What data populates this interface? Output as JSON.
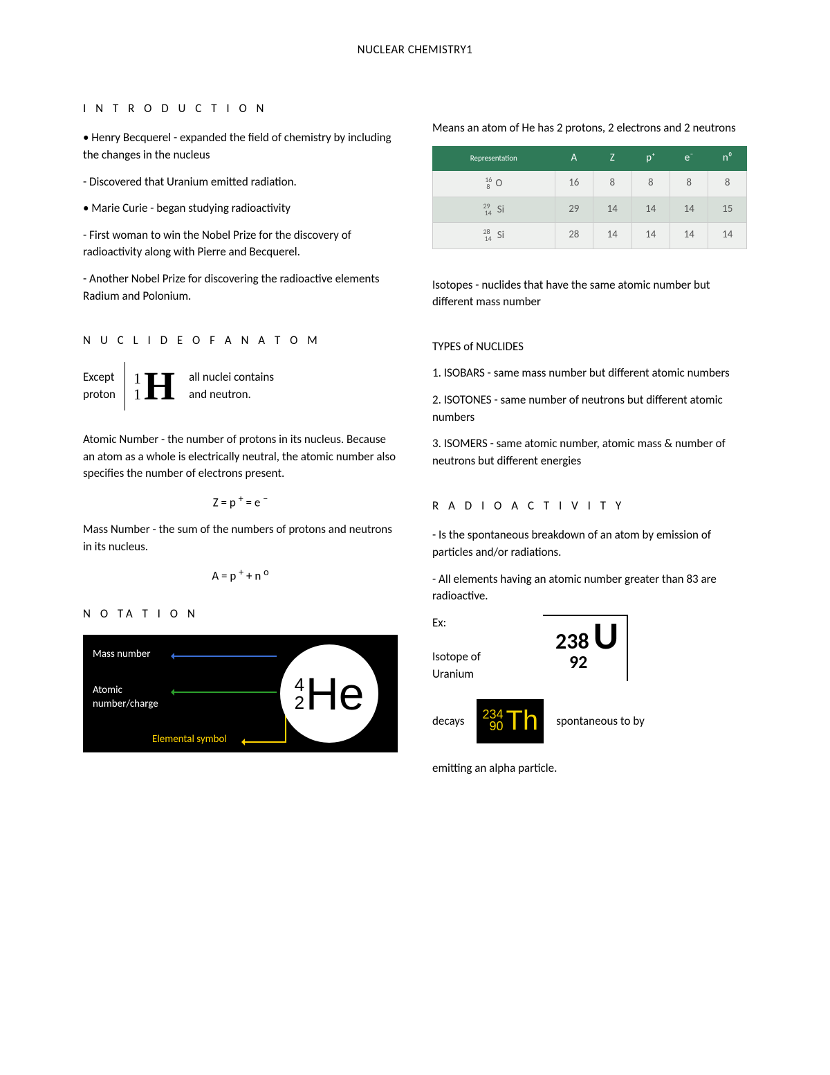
{
  "title": "NUCLEAR CHEMISTRY1",
  "sections": {
    "intro_heading": "I N T R O D U C T I O N",
    "nuclide_heading": "N U C L I D E O F A N A T O M",
    "notation_heading": "N O TA T I O N",
    "types_heading": "TYPES of NUCLIDES",
    "radio_heading": "R A D I O A C T I V I T Y"
  },
  "intro": {
    "p1": "• Henry Becquerel - expanded the field of chemistry by including the changes in the nucleus",
    "p2": "- Discovered that Uranium emitted radiation.",
    "p3": "• Marie Curie - began studying radioactivity",
    "p4": "- First woman to win the Nobel Prize for the discovery of radioactivity along with Pierre and Becquerel.",
    "p5": "- Another Nobel Prize for discovering the radioactive elements Radium and Polonium."
  },
  "nuclide": {
    "lbl_left_1": "Except",
    "lbl_left_2": "proton",
    "mass": "1",
    "z": "1",
    "symbol": "H",
    "lbl_right_1": "all nuclei contains",
    "lbl_right_2": "and neutron.",
    "atomic_def": "Atomic Number - the number of protons in its nucleus. Because an atom as a whole is electrically neutral, the atomic number also specifies the number of electrons present.",
    "formula1_pre": "Z = p ",
    "formula1_sup1": "+",
    "formula1_mid": " = e ",
    "formula1_sup2": "−",
    "mass_def": "Mass Number - the sum of the numbers of protons and neutrons in its nucleus.",
    "formula2_pre": "A = p ",
    "formula2_sup1": "+",
    "formula2_mid": " + n ",
    "formula2_sup2": "o"
  },
  "notation": {
    "label_mass": "Mass number",
    "label_atomic1": "Atomic",
    "label_atomic2": "number/charge",
    "label_elem": "Elemental symbol",
    "he_mass": "4",
    "he_z": "2",
    "he_sym": "He",
    "arrow_colors": {
      "mass": "#3b6fd6",
      "atomic": "#2ca02c",
      "elem": "#ffd400"
    }
  },
  "rightcol": {
    "means": "Means an atom of He has 2 protons, 2 electrons and 2 neutrons",
    "isotopes": "Isotopes - nuclides that have the same atomic number but different mass number",
    "type1": "1. ISOBARS - same mass number but different atomic numbers",
    "type2": "2. ISOTONES - same number of neutrons but different atomic numbers",
    "type3": "3. ISOMERS - same atomic number, atomic mass & number of neutrons but different energies",
    "radio1": "- Is the spontaneous breakdown of an atom by emission of particles and/or radiations.",
    "radio2": "- All elements having an atomic number greater than 83 are radioactive.",
    "ex": "Ex:",
    "isotope_label1": "Isotope of",
    "isotope_label2": "Uranium",
    "u_mass": "238",
    "u_z": "92",
    "u_sym": "U",
    "decays": "decays",
    "th_mass": "234",
    "th_z": "90",
    "th_sym": "Th",
    "spont": "spontaneous to by",
    "emit": "emitting an alpha particle."
  },
  "table": {
    "headers": [
      "Representation",
      "A",
      "Z",
      "p⁺",
      "e⁻",
      "n⁰"
    ],
    "header_bg": "#2f7a58",
    "rows": [
      {
        "sym": "O",
        "mass": "16",
        "z": "8",
        "A": "16",
        "Z": "8",
        "p": "8",
        "e": "8",
        "n": "8"
      },
      {
        "sym": "Si",
        "mass": "29",
        "z": "14",
        "A": "29",
        "Z": "14",
        "p": "14",
        "e": "14",
        "n": "15"
      },
      {
        "sym": "Si",
        "mass": "28",
        "z": "14",
        "A": "28",
        "Z": "14",
        "p": "14",
        "e": "14",
        "n": "14"
      }
    ]
  }
}
